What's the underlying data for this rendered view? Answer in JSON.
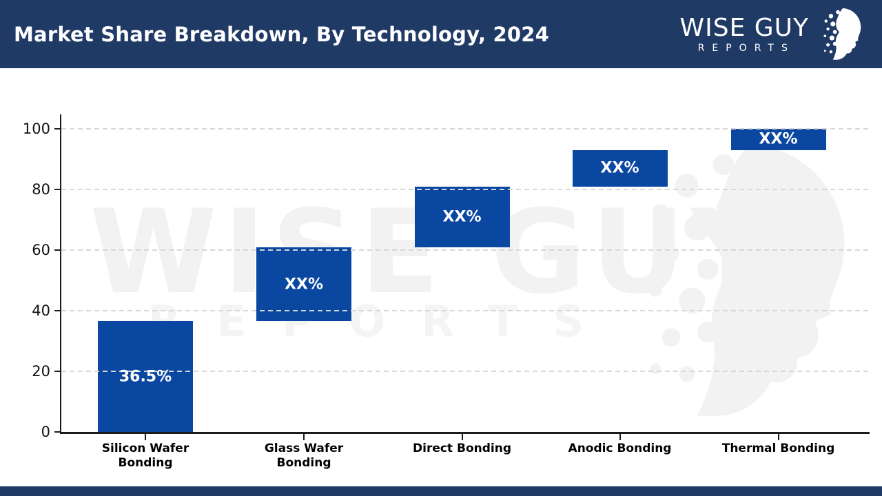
{
  "header": {
    "title": "Market Share Breakdown, By Technology, 2024",
    "bg_color": "#203a66",
    "logo": {
      "line1": "WISE GUY",
      "line2": "REPORTS"
    }
  },
  "watermark": {
    "line1": "WISE GUY",
    "line2": "REPORTS"
  },
  "footer": {
    "bg_color": "#203a66"
  },
  "chart_data": {
    "type": "bar",
    "subtype": "waterfall",
    "title": "Market Share Breakdown, By Technology, 2024",
    "xlabel": "",
    "ylabel": "",
    "categories": [
      "Silicon Wafer Bonding",
      "Glass Wafer Bonding",
      "Direct Bonding",
      "Anodic Bonding",
      "Thermal Bonding"
    ],
    "category_label_lines": [
      [
        "Silicon Wafer",
        "Bonding"
      ],
      [
        "Glass Wafer",
        "Bonding"
      ],
      [
        "Direct Bonding"
      ],
      [
        "Anodic Bonding"
      ],
      [
        "Thermal Bonding"
      ]
    ],
    "segments": [
      {
        "category": "Silicon Wafer Bonding",
        "start": 0,
        "end": 36.5,
        "label": "36.5%"
      },
      {
        "category": "Glass Wafer Bonding",
        "start": 36.5,
        "end": 61,
        "label": "XX%"
      },
      {
        "category": "Direct Bonding",
        "start": 61,
        "end": 81,
        "label": "XX%"
      },
      {
        "category": "Anodic Bonding",
        "start": 81,
        "end": 93,
        "label": "XX%"
      },
      {
        "category": "Thermal Bonding",
        "start": 93,
        "end": 100,
        "label": "XX%"
      }
    ],
    "y_ticks": [
      0,
      20,
      40,
      60,
      80,
      100
    ],
    "ylim": [
      0,
      104.5
    ],
    "bar_color": "#0a47a1",
    "grid": true,
    "gridline_style": "dashed",
    "legend": "none"
  }
}
